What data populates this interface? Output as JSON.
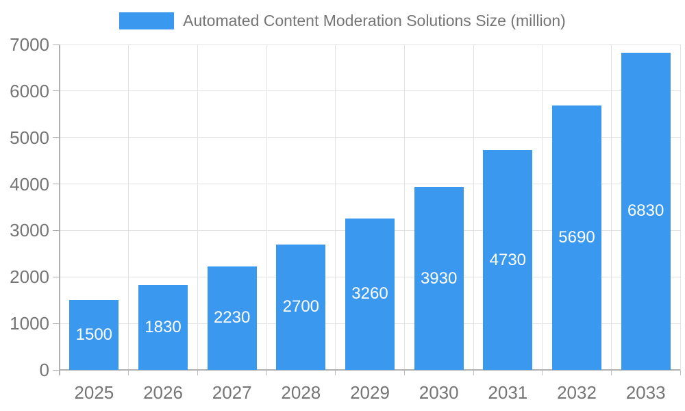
{
  "chart_data": {
    "type": "bar",
    "title": "Automated Content Moderation Solutions Size (million)",
    "legend_position": "top",
    "categories": [
      "2025",
      "2026",
      "2027",
      "2028",
      "2029",
      "2030",
      "2031",
      "2032",
      "2033"
    ],
    "values": [
      1500,
      1830,
      2230,
      2700,
      3260,
      3930,
      4730,
      5690,
      6830
    ],
    "xlabel": "",
    "ylabel": "",
    "ylim": [
      0,
      7000
    ],
    "ytick_step": 1000,
    "yticks": [
      0,
      1000,
      2000,
      3000,
      4000,
      5000,
      6000,
      7000
    ],
    "grid": true,
    "colors": {
      "bar": "#3a99ee",
      "bar_label": "#ffffff",
      "axis_text": "#757575",
      "grid_line": "#e3e3e3",
      "axis_line": "#b0b0b0",
      "tick": "#c0c0c0"
    }
  }
}
